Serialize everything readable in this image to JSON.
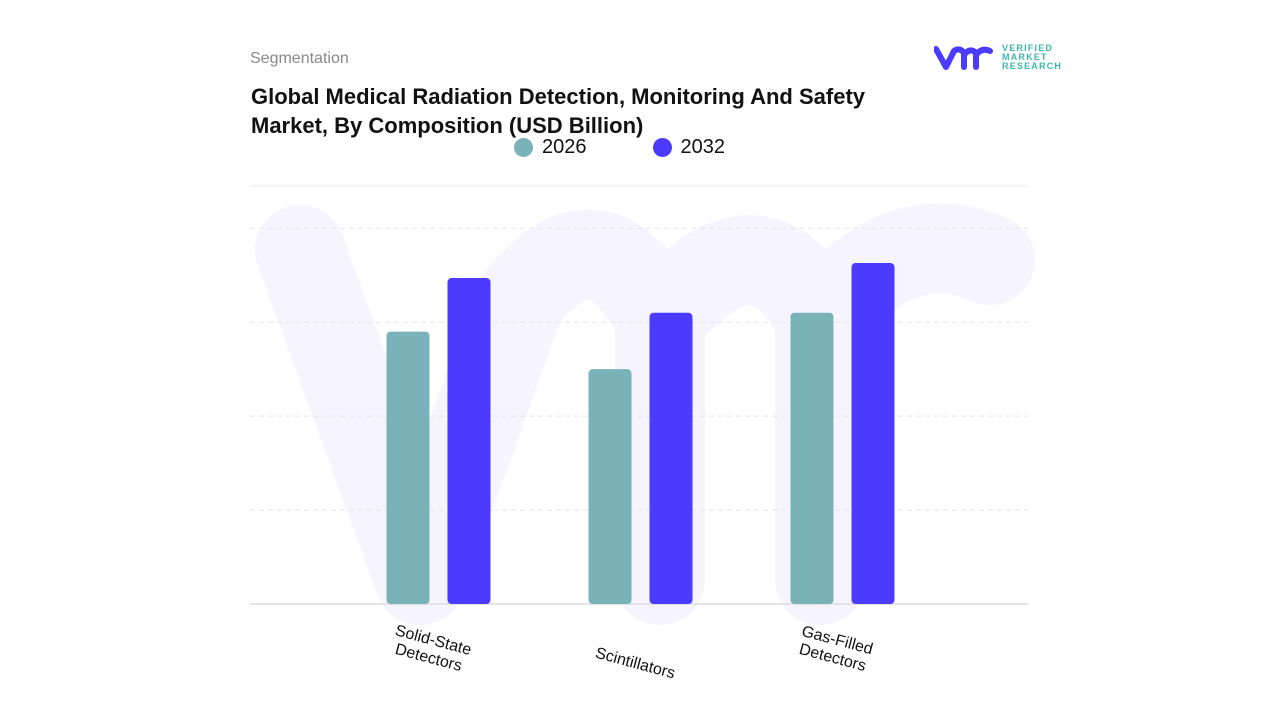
{
  "header": {
    "segment_label": "Segmentation",
    "brand": "VERIFIED MARKET RESEARCH"
  },
  "colors": {
    "2026": "#7ab3b7",
    "2032": "#4b3bff",
    "grid": "#e3e3e3"
  },
  "chart_data": {
    "type": "bar",
    "title": "Global Medical Radiation Detection, Monitoring And Safety Market, By Composition (USD Billion)",
    "categories": [
      "Solid-State Detectors",
      "Scintillators",
      "Gas-Filled Detectors"
    ],
    "series": [
      {
        "name": "2026",
        "values": [
          2.9,
          2.5,
          3.1
        ]
      },
      {
        "name": "2032",
        "values": [
          3.47,
          3.1,
          3.63
        ]
      }
    ],
    "xlabel": "",
    "ylabel": "",
    "ylim": [
      0,
      4.45
    ],
    "grid": true,
    "legend": "top",
    "y_tick_labels_shown": false
  }
}
